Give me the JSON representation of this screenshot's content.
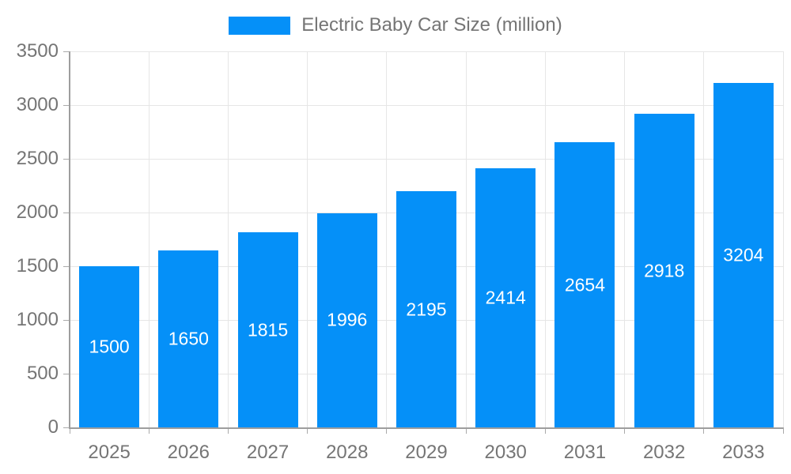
{
  "chart_data": {
    "type": "bar",
    "title": "Electric Baby Car Size (million)",
    "categories": [
      "2025",
      "2026",
      "2027",
      "2028",
      "2029",
      "2030",
      "2031",
      "2032",
      "2033"
    ],
    "series": [
      {
        "name": "Electric Baby Car Size (million)",
        "values": [
          1500,
          1650,
          1815,
          1996,
          2195,
          2414,
          2654,
          2918,
          3204
        ]
      }
    ],
    "data_labels": [
      "1500",
      "1650",
      "1815",
      "1996",
      "2195",
      "2414",
      "2654",
      "2918",
      "3204"
    ],
    "xlabel": "",
    "ylabel": "",
    "ylim": [
      0,
      3500
    ],
    "y_ticks": [
      0,
      500,
      1000,
      1500,
      2000,
      2500,
      3000,
      3500
    ],
    "grid": true,
    "legend_position": "top-center",
    "colors": {
      "bar": "#0590f8",
      "bar_label_text": "#ffffff",
      "grid": "#e6e6e6",
      "axis": "#9e9e9e",
      "tick": "#aaaaaa",
      "tick_text": "#757575",
      "legend_text": "#757575",
      "background": "#ffffff"
    }
  },
  "legend": {
    "label": "Electric Baby Car Size (million)"
  }
}
